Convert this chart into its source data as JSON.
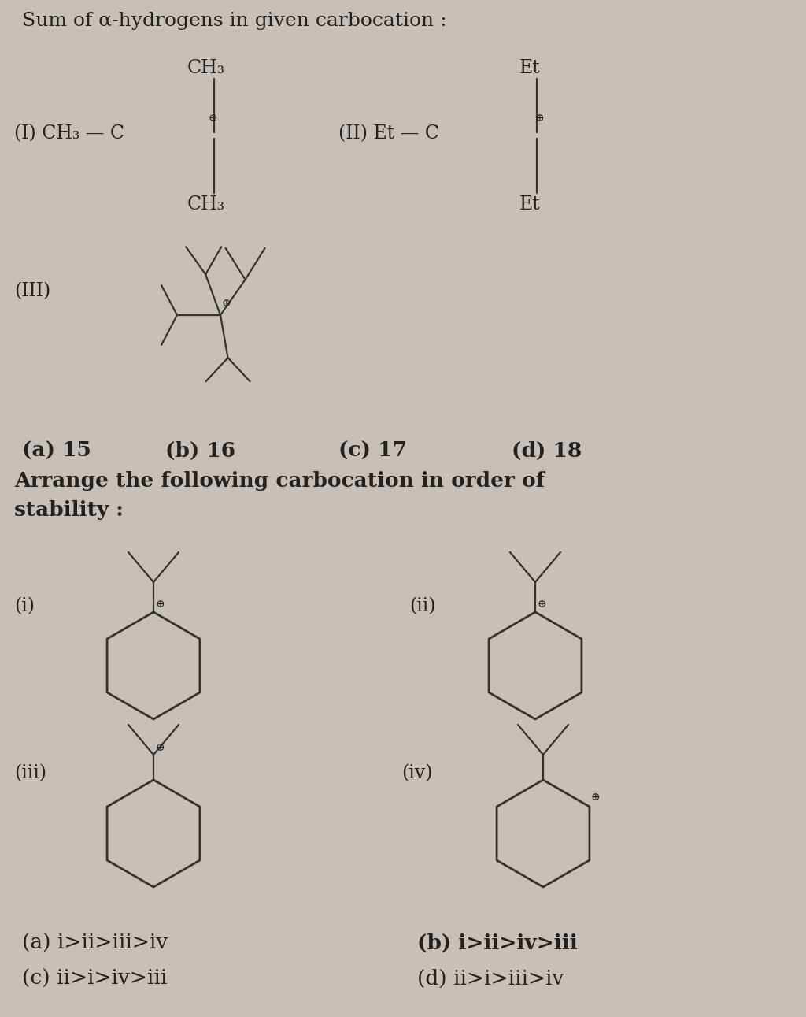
{
  "bg_color": "#c8c0b8",
  "text_color": "#222222",
  "title_top": "Sum of α-hydrogens in given carbocation :",
  "mcq_options_top": [
    "(a) 15",
    "(b) 16",
    "(c) 17",
    "(d) 18"
  ],
  "question2_line1": "Arrange the following carbocation in order of",
  "question2_line2": "stability :",
  "mcq_options_bottom": [
    "(a) i>ii>iii>iv",
    "(b) i>ii>iv>iii",
    "(c) ii>i>iv>iii",
    "(d) ii>i>iii>iv"
  ],
  "line_color": "#333333",
  "font_size_main": 19,
  "font_size_struct": 17,
  "font_size_super": 11
}
